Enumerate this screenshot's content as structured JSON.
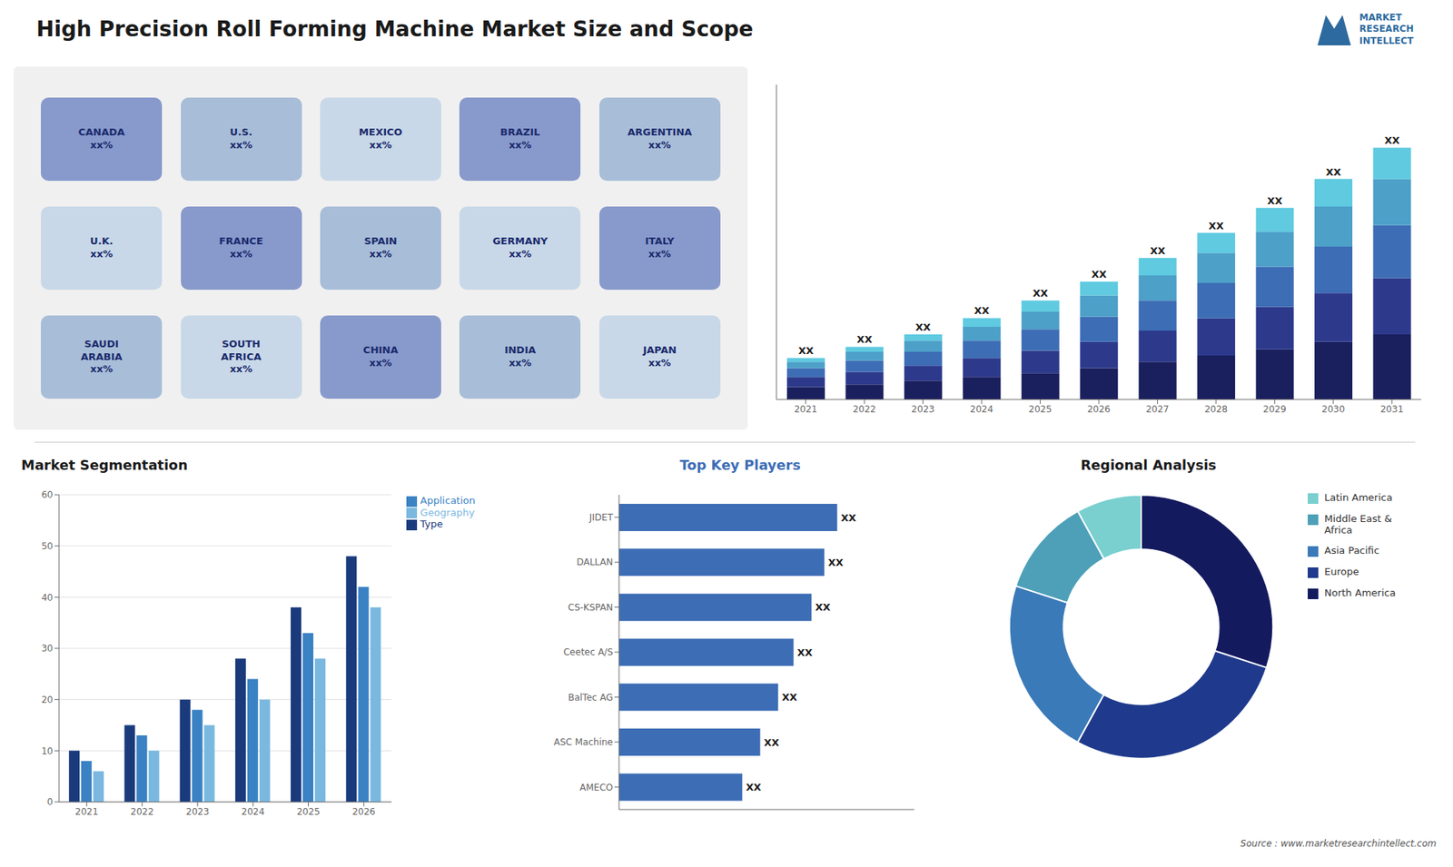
{
  "chart_data": [
    {
      "type": "map",
      "title": "High Precision Roll Forming Machine Market Size and Scope",
      "subtitle": "MARKET\nRESEARCH\nINTELLECT",
      "annotations": [
        "CANADA\nxx%",
        "U.S.\nxx%",
        "MEXICO\nxx%",
        "BRAZIL\nxx%",
        "ARGENTINA\nxx%",
        "U.K.\nxx%",
        "FRANCE\nxx%",
        "SPAIN\nxx%",
        "GERMANY\nxx%",
        "ITALY\nxx%",
        "SAUDI\nARABIA\nxx%",
        "SOUTH\nAFRICA\nxx%",
        "CHINA\nxx%",
        "INDIA\nxx%",
        "JAPAN\nxx%"
      ]
    },
    {
      "type": "bar",
      "stacked": true,
      "categories": [
        "2021",
        "2022",
        "2023",
        "2024",
        "2025",
        "2026",
        "2027",
        "2028",
        "2029",
        "2030",
        "2031"
      ],
      "series": [
        {
          "color": "#1a1f5e",
          "values": [
            1,
            1.2,
            1.5,
            1.8,
            2.1,
            2.5,
            3.0,
            3.5,
            4.0,
            4.6,
            5.2
          ]
        },
        {
          "color": "#2d3a8c",
          "values": [
            0.8,
            1.0,
            1.2,
            1.5,
            1.8,
            2.1,
            2.5,
            3.0,
            3.4,
            3.9,
            4.5
          ]
        },
        {
          "color": "#3d6db5",
          "values": [
            0.7,
            0.9,
            1.1,
            1.4,
            1.7,
            2.0,
            2.4,
            2.8,
            3.2,
            3.7,
            4.2
          ]
        },
        {
          "color": "#4da0c8",
          "values": [
            0.5,
            0.7,
            0.9,
            1.1,
            1.4,
            1.7,
            2.0,
            2.4,
            2.8,
            3.2,
            3.7
          ]
        },
        {
          "color": "#5fcae0",
          "values": [
            0.3,
            0.4,
            0.5,
            0.7,
            0.9,
            1.1,
            1.4,
            1.6,
            1.9,
            2.2,
            2.5
          ]
        }
      ],
      "ylim": [
        0,
        25.125
      ],
      "tick_labels": "x",
      "annotations": [
        "XX",
        "XX",
        "XX",
        "XX",
        "XX",
        "XX",
        "XX",
        "XX",
        "XX",
        "XX",
        "XX"
      ]
    },
    {
      "type": "bar",
      "title": "Market Segmentation",
      "categories": [
        "2021",
        "2022",
        "2023",
        "2024",
        "2025",
        "2026"
      ],
      "series": [
        {
          "name": "Type",
          "color": "#1a3a7c",
          "values": [
            10,
            15,
            20,
            28,
            38,
            48
          ]
        },
        {
          "name": "Application",
          "color": "#3a82c4",
          "values": [
            8,
            13,
            18,
            24,
            33,
            42
          ]
        },
        {
          "name": "Geography",
          "color": "#7ab8e0",
          "values": [
            6,
            10,
            15,
            20,
            28,
            38
          ]
        }
      ],
      "ylim": [
        0,
        60
      ],
      "yticks": [
        0,
        10,
        20,
        30,
        40,
        50,
        60
      ],
      "grid": true,
      "legend": "right"
    },
    {
      "type": "bar",
      "orientation": "horizontal",
      "title": "Top Key Players",
      "categories": [
        "JIDET",
        "DALLAN",
        "CS-KSPAN",
        "Ceetec A/S",
        "BalTec AG",
        "ASC Machine",
        "AMECO"
      ],
      "values": [
        0.85,
        0.8,
        0.75,
        0.68,
        0.62,
        0.55,
        0.48
      ],
      "color": "#3d6db5",
      "xlim": [
        0,
        1.15
      ],
      "tick_labels": "y",
      "annotations": [
        "XX",
        "XX",
        "XX",
        "XX",
        "XX",
        "XX",
        "XX"
      ]
    },
    {
      "type": "pie",
      "title": "Regional Analysis",
      "categories": [
        "Latin America",
        "Middle East &\nAfrica",
        "Asia Pacific",
        "Europe",
        "North America"
      ],
      "values": [
        8,
        12,
        22,
        28,
        30
      ],
      "colors": [
        "#7acfcf",
        "#4da0b8",
        "#3a7ab8",
        "#1f3a8c",
        "#141a5e"
      ],
      "legend": "right",
      "annotations": [
        "Source : www.marketresearchintellect.com"
      ]
    }
  ]
}
